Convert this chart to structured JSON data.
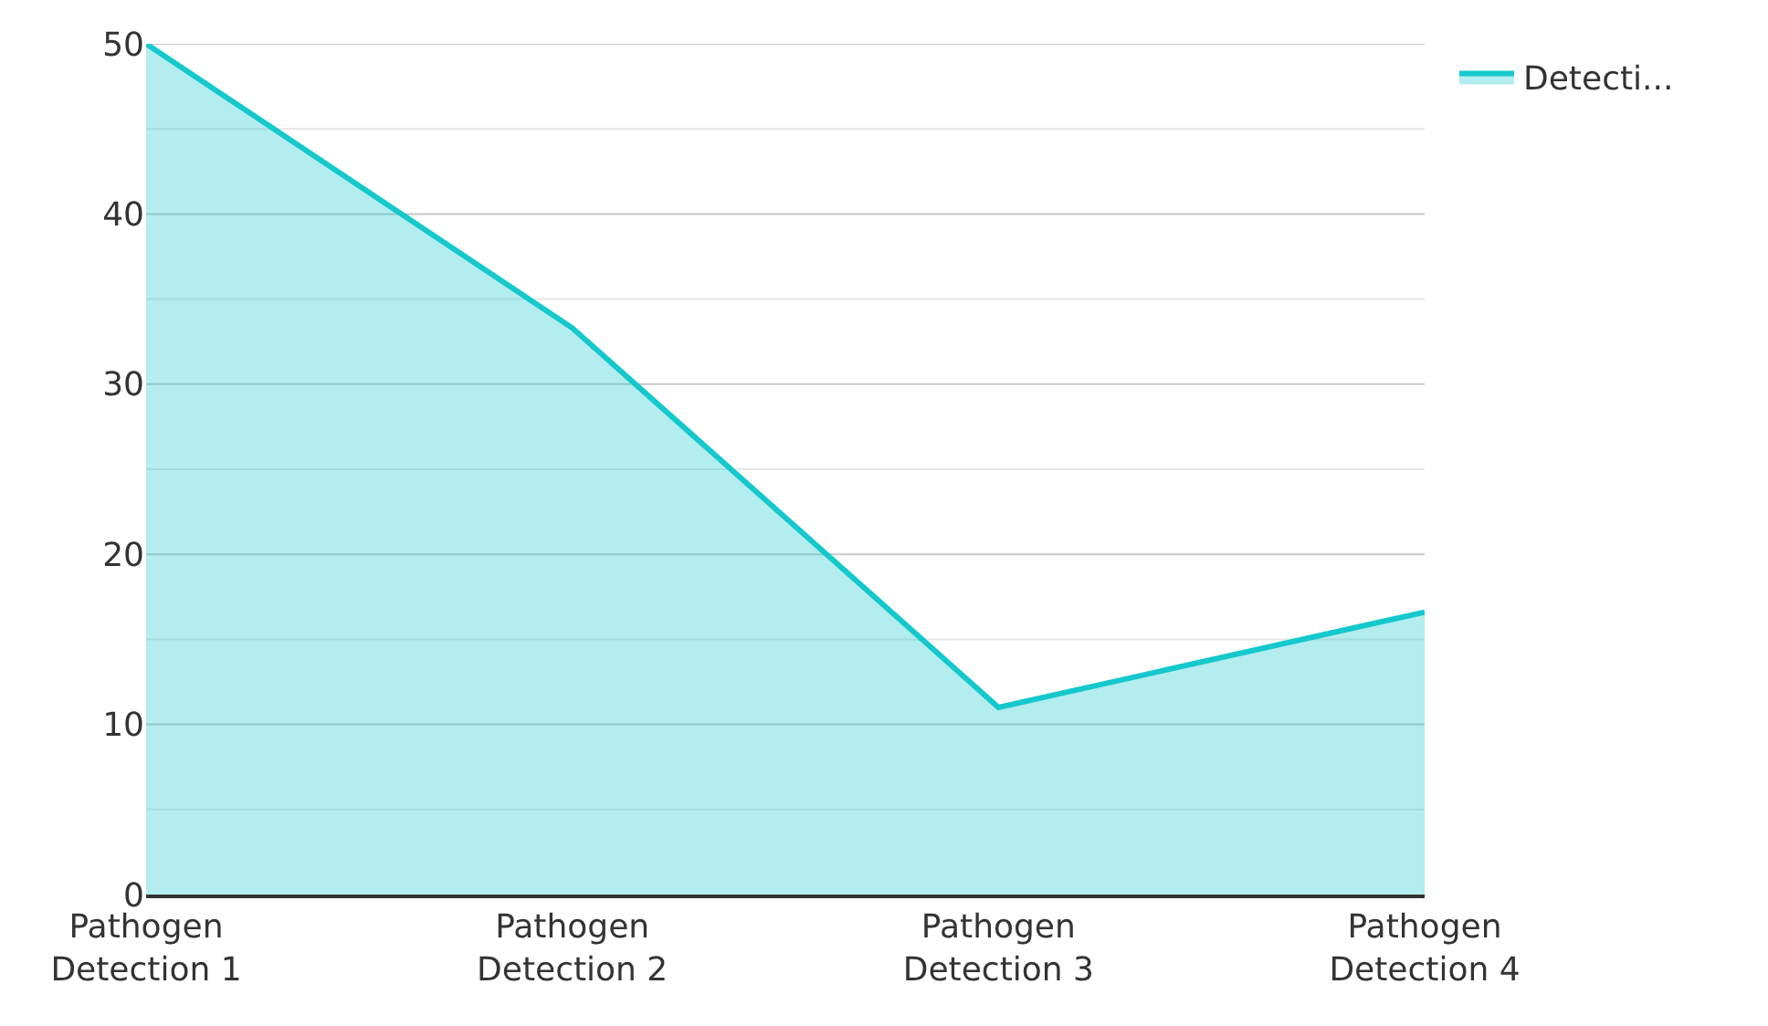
{
  "chart_data": {
    "type": "area",
    "categories": [
      "Pathogen\nDetection 1",
      "Pathogen\nDetection 2",
      "Pathogen\nDetection 3",
      "Pathogen\nDetection 4"
    ],
    "series": [
      {
        "name": "Detecti...",
        "color": "#14c8cc",
        "values": [
          50,
          33.3,
          11,
          16.6
        ]
      }
    ],
    "ylim": [
      0,
      50
    ],
    "yticks": [
      0,
      {
        "value": 5,
        "label": null
      },
      10,
      {
        "value": 15,
        "label": null
      },
      20,
      {
        "value": 25,
        "label": null
      },
      30,
      {
        "value": 35,
        "label": null
      },
      40,
      {
        "value": 45,
        "label": null
      },
      50
    ],
    "grid": "y",
    "legend": "top right"
  }
}
